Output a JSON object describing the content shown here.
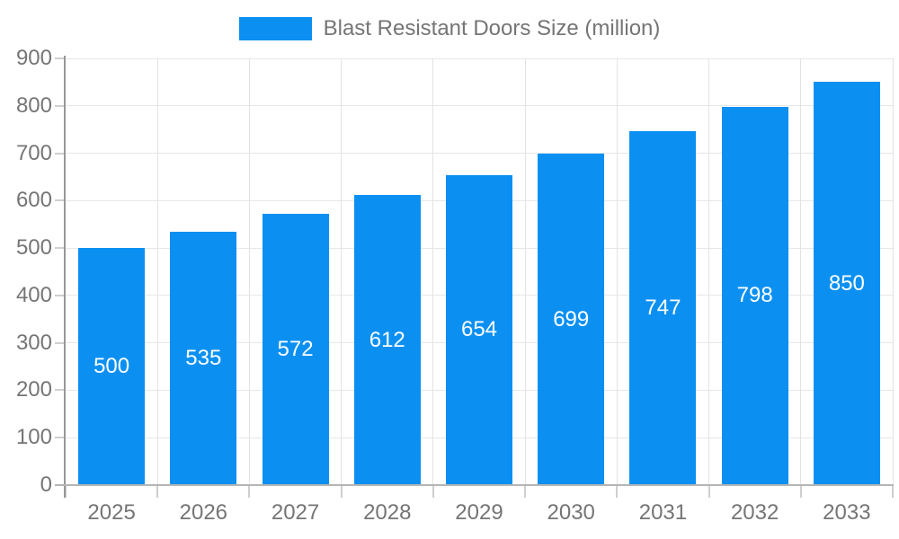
{
  "chart_data": {
    "type": "bar",
    "title": "Blast Resistant Doors Size (million)",
    "series_name": "Blast Resistant Doors Size (million)",
    "categories": [
      "2025",
      "2026",
      "2027",
      "2028",
      "2029",
      "2030",
      "2031",
      "2032",
      "2033"
    ],
    "values": [
      500,
      535,
      572,
      612,
      654,
      699,
      747,
      798,
      850
    ],
    "xlabel": "",
    "ylabel": "",
    "ylim": [
      0,
      900
    ],
    "yticks": [
      0,
      100,
      200,
      300,
      400,
      500,
      600,
      700,
      800,
      900
    ],
    "grid": true,
    "legend_position": "top",
    "value_label_position": "inside-center",
    "colors": {
      "bar": "#0b90f2",
      "bar_label": "#ffffff",
      "axis_text": "#757575",
      "legend_text": "#757575",
      "grid_line_h": "#e7e7e7",
      "grid_line_v": "#e3e3e3",
      "y_axis_line": "#979797",
      "x_axis_line": "#b5b5b5",
      "tick_mark": "#cfcfcf",
      "background": "#ffffff"
    }
  }
}
